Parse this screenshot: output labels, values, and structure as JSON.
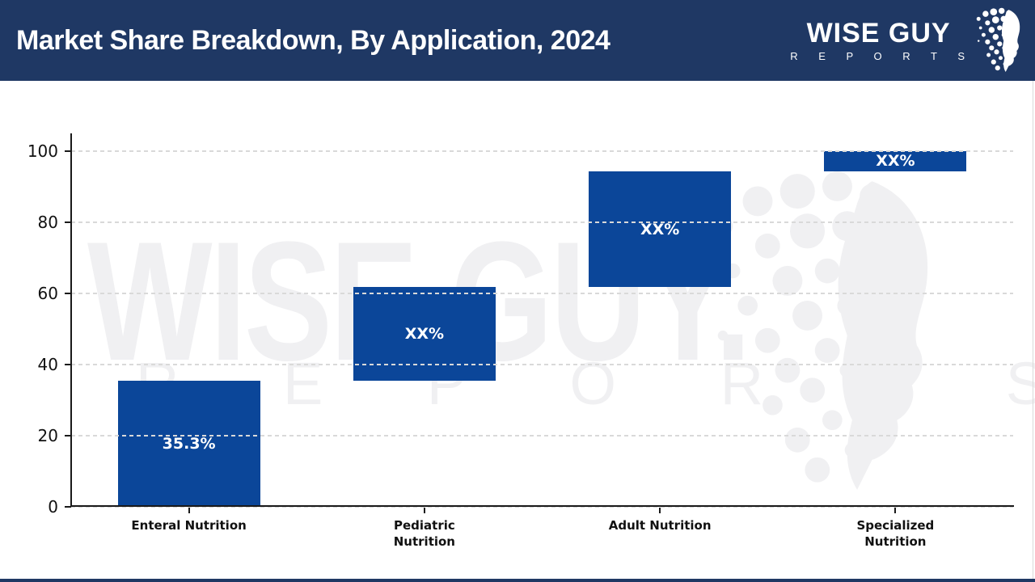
{
  "header": {
    "title": "Market Share Breakdown, By Application, 2024",
    "logo": {
      "line1": "WISE GUY",
      "line2": "R E P O R T S"
    }
  },
  "watermark": {
    "line1": "WISE GUY.",
    "line2": "R E P O R T S"
  },
  "colors": {
    "header_bg": "#1F3864",
    "bar": "#0B4699",
    "grid": "#D9D9D9",
    "axis": "#1A1A1A",
    "watermark": "#F0F0F2",
    "label_text": "#FFFFFF"
  },
  "chart_data": {
    "type": "bar",
    "subtype": "waterfall",
    "title": "Market Share Breakdown, By Application, 2024",
    "categories": [
      "Enteral Nutrition",
      "Pediatric\nNutrition",
      "Adult Nutrition",
      "Specialized\nNutrition"
    ],
    "segments": [
      {
        "category": "Enteral Nutrition",
        "start": 0,
        "end": 35.3,
        "label": "35.3%"
      },
      {
        "category": "Pediatric Nutrition",
        "start": 35.3,
        "end": 61.7,
        "label": "XX%"
      },
      {
        "category": "Adult Nutrition",
        "start": 61.8,
        "end": 94.1,
        "label": "XX%"
      },
      {
        "category": "Specialized Nutrition",
        "start": 94.2,
        "end": 100,
        "label": "XX%"
      }
    ],
    "ylim": [
      0,
      100
    ],
    "yticks": [
      0,
      20,
      40,
      60,
      80,
      100
    ],
    "xlabel": "",
    "ylabel": "",
    "grid": "horizontal-dashed",
    "legend": "none"
  }
}
